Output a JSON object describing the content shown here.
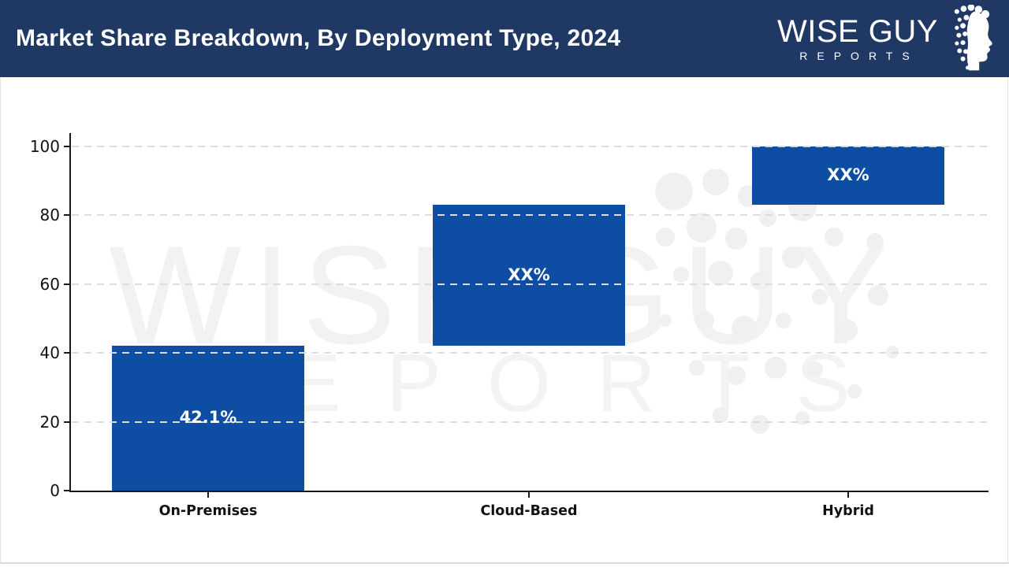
{
  "header": {
    "title": "Market Share Breakdown, By Deployment Type, 2024",
    "background_color": "#203864"
  },
  "logo": {
    "title": "WISE GUY",
    "subtitle": "REPORTS",
    "face_icon": "dotted-head-profile",
    "color": "#ffffff"
  },
  "watermark": {
    "line1": "WISE GUY",
    "line2": "REPORTS",
    "color": "#f2f2f2"
  },
  "chart_data": {
    "type": "bar",
    "subtype": "floating-waterfall",
    "title": "Market Share Breakdown, By Deployment Type, 2024",
    "categories": [
      "On-Premises",
      "Cloud-Based",
      "Hybrid"
    ],
    "segments": [
      {
        "category": "On-Premises",
        "start": 0,
        "end": 42.1,
        "label": "42.1%"
      },
      {
        "category": "Cloud-Based",
        "start": 42.1,
        "end": 83,
        "label": "XX%"
      },
      {
        "category": "Hybrid",
        "start": 83,
        "end": 100,
        "label": "XX%"
      }
    ],
    "yticks": [
      0,
      20,
      40,
      60,
      80,
      100
    ],
    "ylim": [
      0,
      104
    ],
    "xlabel": "",
    "ylabel": "",
    "grid": "horizontal-dashed",
    "gridline_color": "#dcdcdc",
    "bar_color": "#0d4da4",
    "value_label_color": "#ffffff",
    "axis_color": "#1a1a1a",
    "legend": "none"
  }
}
